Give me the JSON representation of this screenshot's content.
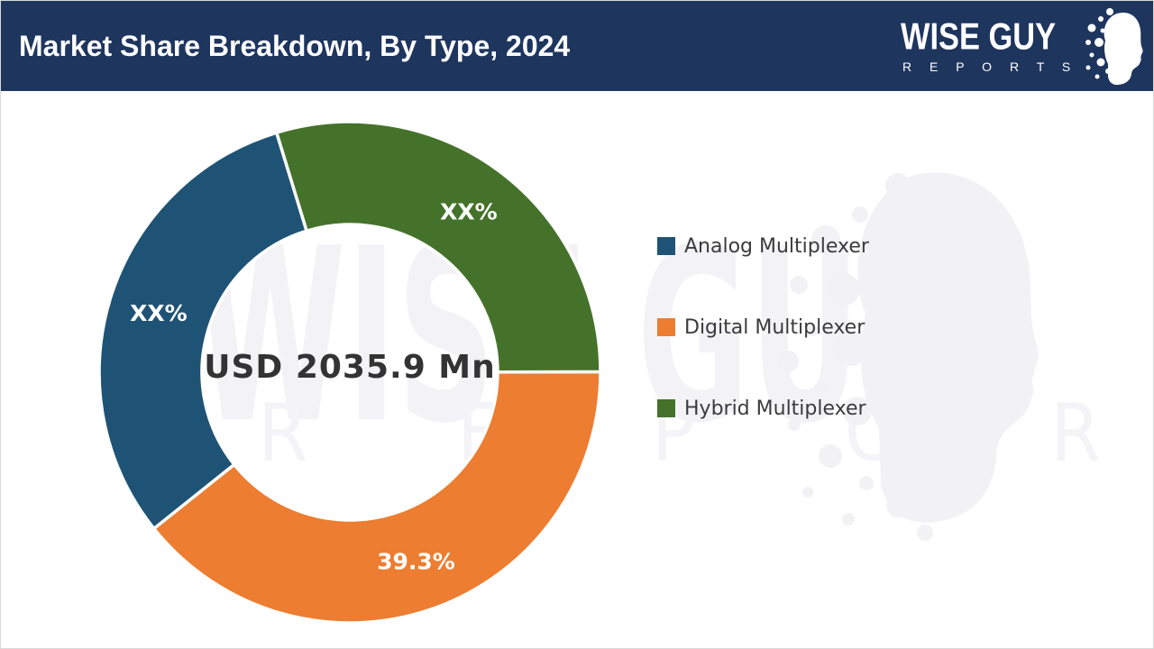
{
  "header": {
    "title": "Market Share Breakdown, By Type, 2024"
  },
  "logo": {
    "line1": "WISE GUY",
    "line2": "R E P O R T S"
  },
  "watermark": {
    "line1": "WISE GUY",
    "line2": "R E P O R T S"
  },
  "colors": {
    "header_bg": "#1e355e",
    "analog_blue": "#1f5376",
    "digital_orange": "#ec7d31",
    "hybrid_green": "#45722a",
    "slice_separator": "#ffffff",
    "center_text": "#333333"
  },
  "chart_data": {
    "type": "pie",
    "subtype": "donut",
    "title": "Market Share Breakdown, By Type, 2024",
    "center_label": "USD 2035.9 Mn",
    "start_angle_deg_from_top": -17,
    "direction": "clockwise",
    "legend_position": "right",
    "segments": [
      {
        "name": "Hybrid Multiplexer",
        "label": "XX%",
        "percent": 29.7,
        "color": "#45722a"
      },
      {
        "name": "Digital Multiplexer",
        "label": "39.3%",
        "percent": 39.3,
        "color": "#ec7d31"
      },
      {
        "name": "Analog Multiplexer",
        "label": "XX%",
        "percent": 31.0,
        "color": "#1f5376"
      }
    ],
    "legend": [
      {
        "label": "Analog Multiplexer",
        "color": "#1f5376"
      },
      {
        "label": "Digital Multiplexer",
        "color": "#ec7d31"
      },
      {
        "label": "Hybrid Multiplexer",
        "color": "#45722a"
      }
    ]
  }
}
